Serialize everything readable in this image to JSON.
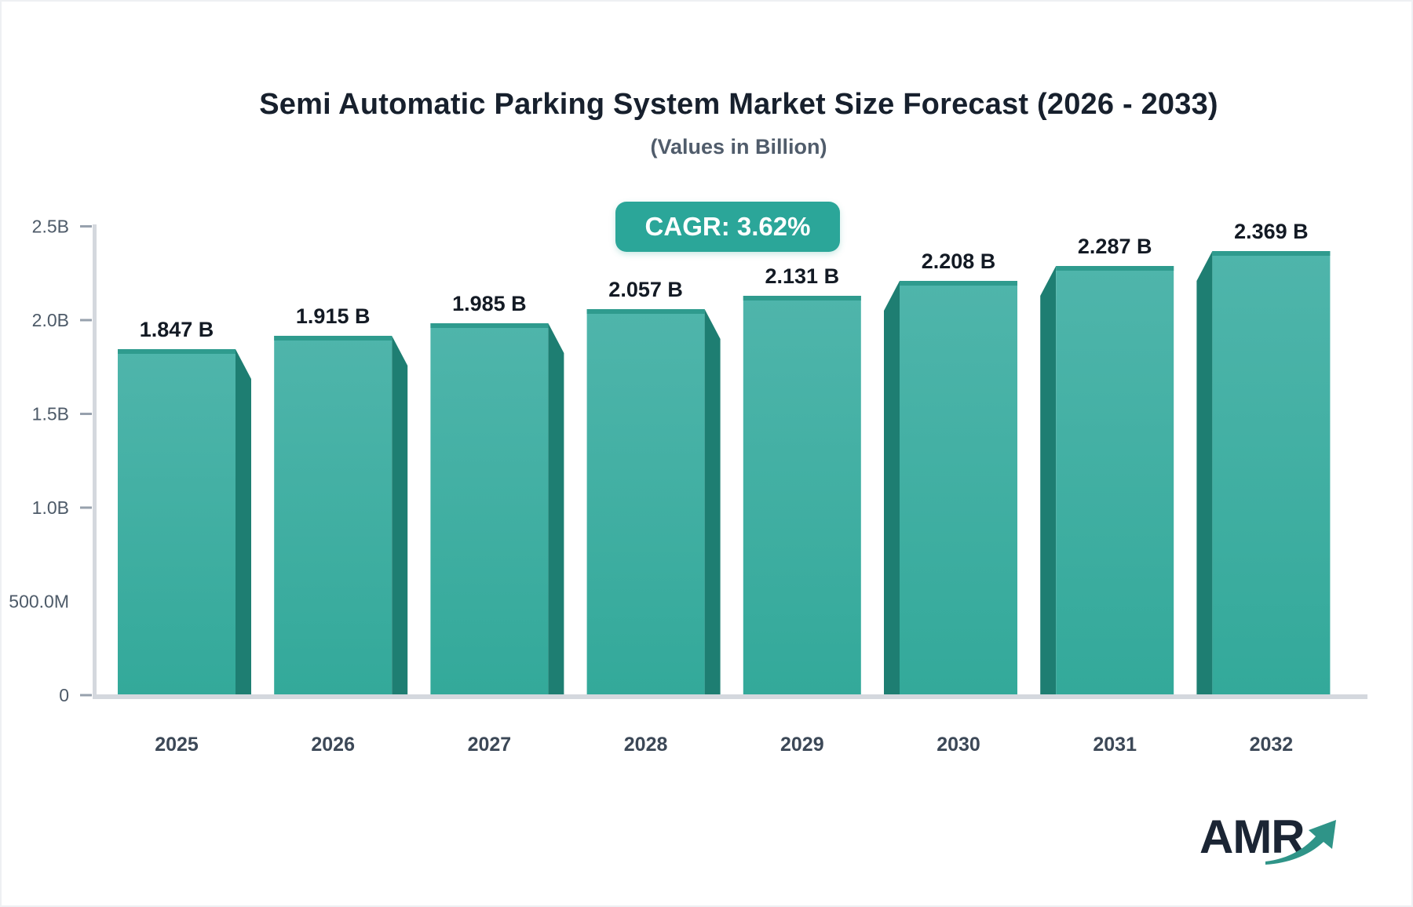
{
  "chart_data": {
    "type": "bar",
    "title": "Semi Automatic Parking System Market Size Forecast (2026 - 2033)",
    "subtitle": "(Values in Billion)",
    "cagr_label": "CAGR: 3.62%",
    "categories": [
      "2025",
      "2026",
      "2027",
      "2028",
      "2029",
      "2030",
      "2031",
      "2032"
    ],
    "values": [
      1.847,
      1.915,
      1.985,
      2.057,
      2.131,
      2.208,
      2.287,
      2.369
    ],
    "value_labels": [
      "1.847 B",
      "1.915 B",
      "1.985 B",
      "2.057 B",
      "2.131 B",
      "2.208 B",
      "2.287 B",
      "2.369 B"
    ],
    "unit": "Billion",
    "ylim": [
      0,
      2.5
    ],
    "grid": "off",
    "legend": "none",
    "y_ticks": [
      {
        "label": "2.5B",
        "value": 2.5,
        "dash": true
      },
      {
        "label": "2.0B",
        "value": 2.0,
        "dash": true
      },
      {
        "label": "1.5B",
        "value": 1.5,
        "dash": true
      },
      {
        "label": "1.0B",
        "value": 1.0,
        "dash": true
      },
      {
        "label": "500.0M",
        "value": 0.5,
        "dash": false
      },
      {
        "label": "0",
        "value": 0.0,
        "dash": true
      }
    ],
    "style": {
      "bar_face_top": "#4fb5ab",
      "bar_face_bottom": "#33a99a",
      "bar_side": "#1e7e72",
      "bar_top_edge": "#2f9b8e",
      "badge_bg": "#2ba699",
      "badge_text": "#ffffff",
      "axis_line": "#d4d8de",
      "tick_dash": "#97a1ad",
      "y_tick_text": "#4d5a68",
      "x_tick_text": "#3c4857",
      "value_text": "#131a24",
      "title_text": "#17202d",
      "subtitle_text": "#505c6b"
    }
  },
  "logo": {
    "text": "AMR",
    "text_color": "#1b2534",
    "arrow_color": "#2f9488"
  }
}
